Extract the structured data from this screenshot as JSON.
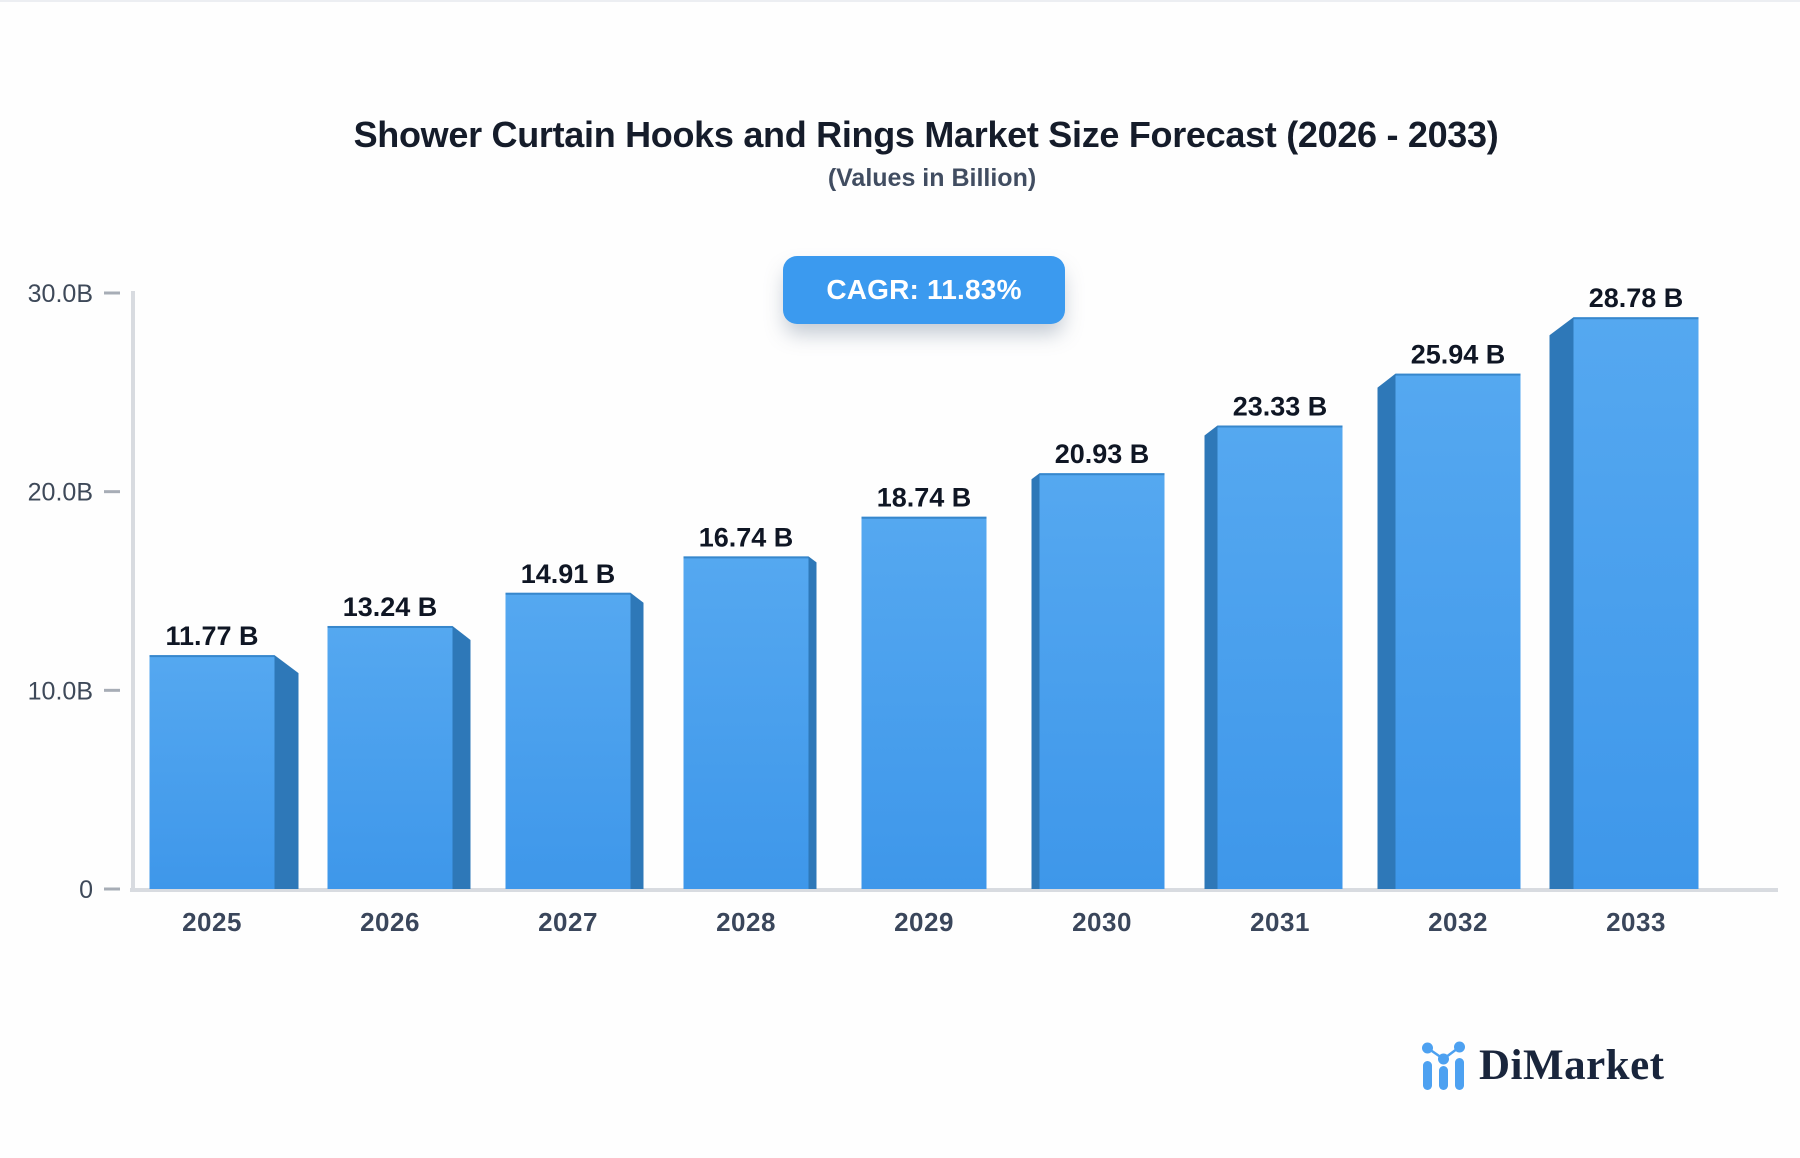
{
  "header": {
    "title": "Shower Curtain Hooks and Rings Market Size Forecast (2026 - 2033)",
    "subtitle": "(Values in Billion)",
    "cagr_label": "CAGR: 11.83%"
  },
  "branding": {
    "name": "DiMarket",
    "icon": "bar-chart-logo-icon"
  },
  "colors": {
    "bar_front_top": "#55a8f0",
    "bar_front_bottom": "#3e97ea",
    "bar_top_edge": "#3282c6",
    "bar_side": "#2e78b8",
    "axis_line": "#d8dbe0",
    "tick_dash": "#a7adb6",
    "y_tick_label": "#3e4959",
    "x_tick_label": "#3a465b",
    "value_label": "#0f1624",
    "badge_bg": "#3b9aef",
    "badge_text": "#ffffff",
    "logo_icon": "#4da1f1",
    "logo_text": "#19253c"
  },
  "chart_data": {
    "type": "bar",
    "title": "Shower Curtain Hooks and Rings Market Size Forecast (2026 - 2033)",
    "subtitle": "(Values in Billion)",
    "annotation": "CAGR: 11.83%",
    "categories": [
      "2025",
      "2026",
      "2027",
      "2028",
      "2029",
      "2030",
      "2031",
      "2032",
      "2033"
    ],
    "values": [
      11.77,
      13.24,
      14.91,
      16.74,
      18.74,
      20.93,
      23.33,
      25.94,
      28.78
    ],
    "value_labels": [
      "11.77 B",
      "13.24 B",
      "14.91 B",
      "16.74 B",
      "18.74 B",
      "20.93 B",
      "23.33 B",
      "25.94 B",
      "28.78 B"
    ],
    "unit": "Billion",
    "xlabel": "",
    "ylabel": "",
    "ylim": [
      0,
      30
    ],
    "y_ticks": [
      {
        "value": 30,
        "label": "30.0B"
      },
      {
        "value": 20,
        "label": "20.0B"
      },
      {
        "value": 10,
        "label": "10.0B"
      },
      {
        "value": 0,
        "label": "0"
      }
    ],
    "grid": false,
    "legend": false,
    "style": "3d-perspective-bars, vanishing point at center column"
  }
}
